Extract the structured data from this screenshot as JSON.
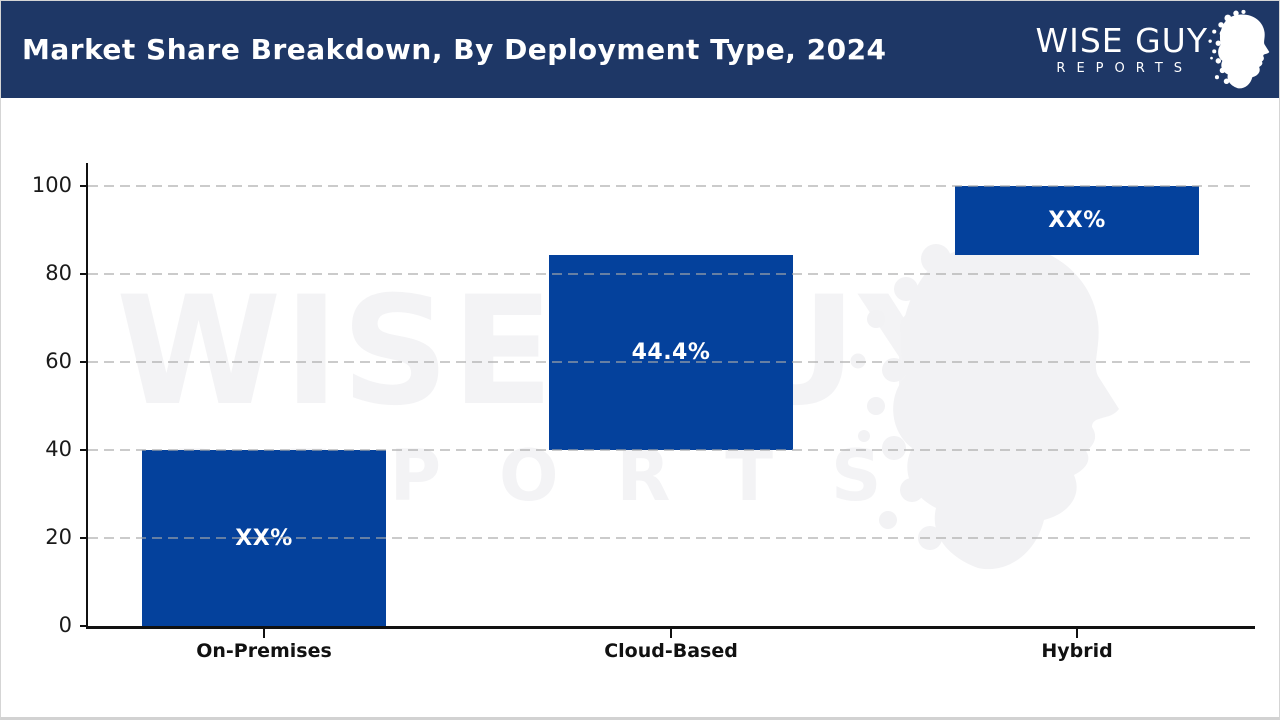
{
  "header": {
    "title": "Market Share Breakdown, By Deployment Type, 2024",
    "logo": {
      "line1": "WISE GUY",
      "line2": "REPORTS"
    }
  },
  "watermark": {
    "line1": "WISE GUY",
    "line2": "REPORTS"
  },
  "colors": {
    "header_bg": "#1e3766",
    "bar_blue": "#04419c",
    "title_text": "#ffffff",
    "axis_text": "#1a1a1a",
    "gridline_gray": "#cccccc",
    "watermark_gray": "#f3f3f5"
  },
  "chart_data": {
    "type": "bar",
    "subtype": "waterfall-percentage-breakdown",
    "title": "Market Share Breakdown, By Deployment Type, 2024",
    "categories": [
      "On-Premises",
      "Cloud-Based",
      "Hybrid"
    ],
    "segments": [
      {
        "category": "On-Premises",
        "start": 0,
        "end": 40,
        "value": 40,
        "label": "XX%"
      },
      {
        "category": "Cloud-Based",
        "start": 40,
        "end": 84.4,
        "value": 44.4,
        "label": "44.4%"
      },
      {
        "category": "Hybrid",
        "start": 84.4,
        "end": 100,
        "value": 15.6,
        "label": "XX%"
      }
    ],
    "xlabel": "",
    "ylabel": "",
    "yticks": [
      0,
      20,
      40,
      60,
      80,
      100
    ],
    "ylim": [
      0,
      105
    ],
    "grid": "horizontal-dashed",
    "legend": "none",
    "bar_color": "#04419c",
    "label_color": "#ffffff"
  }
}
